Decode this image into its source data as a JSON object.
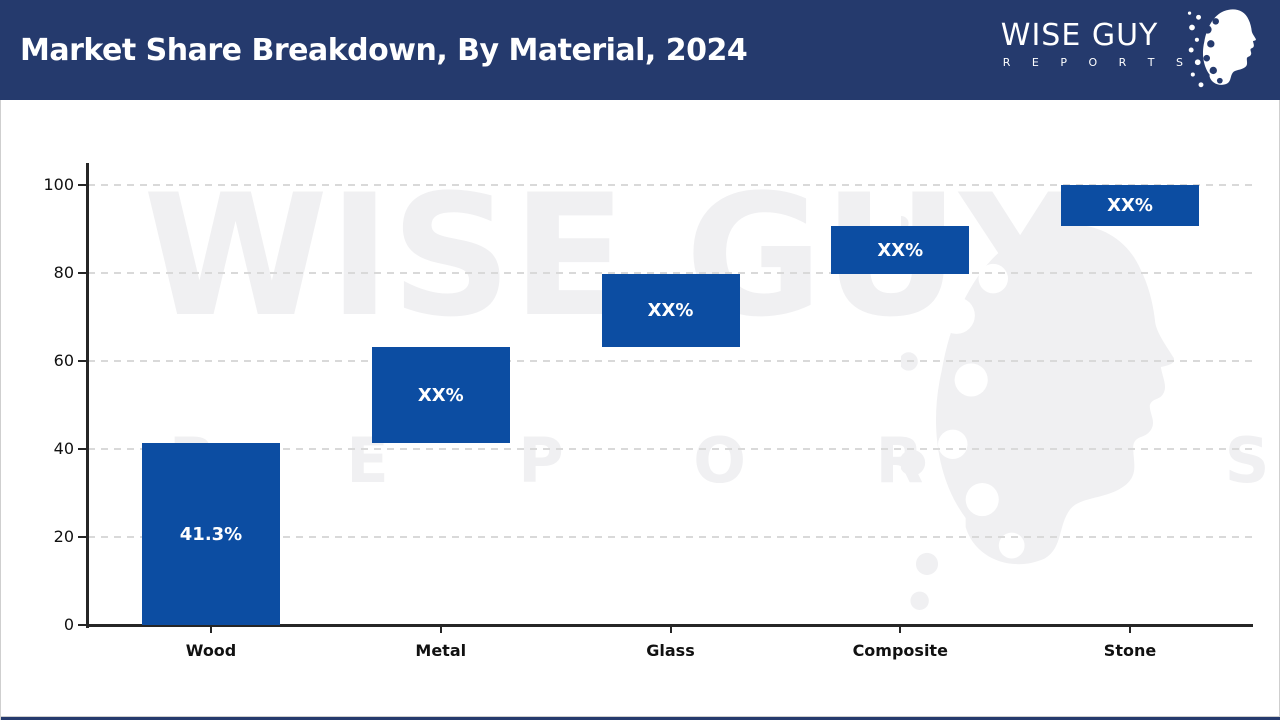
{
  "header": {
    "title": "Market Share Breakdown, By Material, 2024",
    "logo": {
      "line1": "WISE GUY",
      "line2": "R E P O R T S"
    }
  },
  "watermark": {
    "line1": "WISE GUY",
    "line2": "R E P O R T S"
  },
  "colors": {
    "header_bg": "#253A6D",
    "bar": "#0C4DA2",
    "grid": "#D9D9D9",
    "axis": "#262626",
    "watermark": "#F0F0F2",
    "footer_bar": "#253A6D"
  },
  "chart_data": {
    "type": "bar",
    "subtype": "waterfall",
    "title": "Market Share Breakdown, By Material, 2024",
    "categories": [
      "Wood",
      "Metal",
      "Glass",
      "Composite",
      "Stone"
    ],
    "segments": [
      {
        "category": "Wood",
        "start": 0,
        "end": 41.3,
        "label": "41.3%"
      },
      {
        "category": "Metal",
        "start": 41.3,
        "end": 63.2,
        "label": "XX%"
      },
      {
        "category": "Glass",
        "start": 63.2,
        "end": 79.7,
        "label": "XX%"
      },
      {
        "category": "Composite",
        "start": 79.7,
        "end": 90.7,
        "label": "XX%"
      },
      {
        "category": "Stone",
        "start": 90.7,
        "end": 100,
        "label": "XX%"
      }
    ],
    "y_ticks": [
      0,
      20,
      40,
      60,
      80,
      100
    ],
    "ylim": [
      0,
      105
    ],
    "xlabel": "",
    "ylabel": "",
    "grid": "horizontal-dashed",
    "legend": "none",
    "bar_color": "#0C4DA2",
    "value_label_color": "#FFFFFF"
  }
}
